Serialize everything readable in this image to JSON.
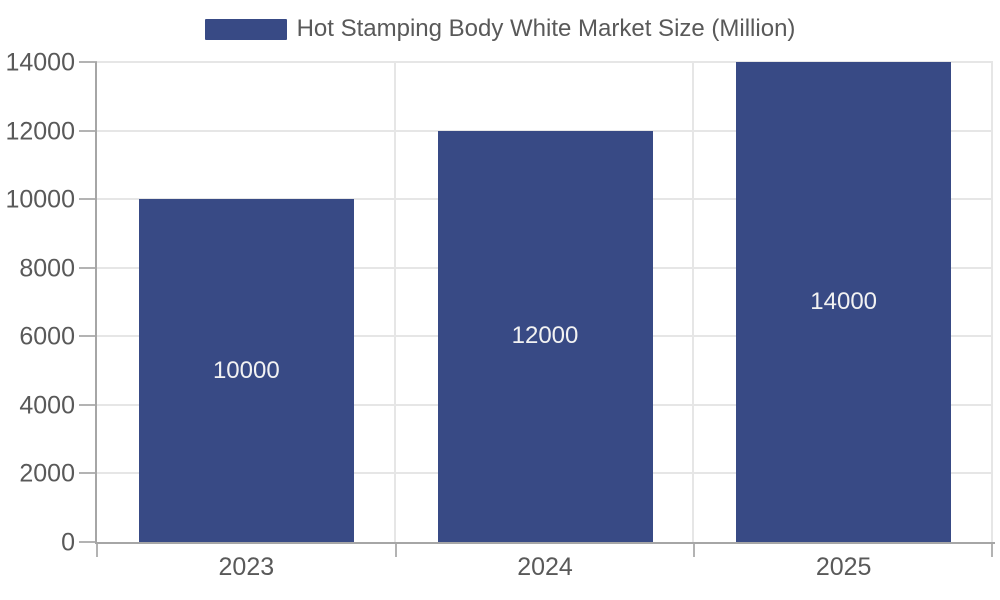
{
  "chart_data": {
    "type": "bar",
    "title": "Hot Stamping Body White Market Size (Million)",
    "categories": [
      "2023",
      "2024",
      "2025"
    ],
    "values": [
      10000,
      12000,
      14000
    ],
    "series": [
      {
        "name": "Hot Stamping Body White Market Size (Million)",
        "values": [
          10000,
          12000,
          14000
        ]
      }
    ],
    "data_labels": [
      "10000",
      "12000",
      "14000"
    ],
    "xlabel": "",
    "ylabel": "",
    "ylim": [
      0,
      14000
    ],
    "yticks": [
      0,
      2000,
      4000,
      6000,
      8000,
      10000,
      12000,
      14000
    ],
    "ytick_labels": [
      "0",
      "2000",
      "4000",
      "6000",
      "8000",
      "10000",
      "12000",
      "14000"
    ],
    "grid": true,
    "legend_position": "top-center",
    "colors": {
      "bar": "#384A85",
      "axis_text": "#595959",
      "grid_line": "#e6e6e6",
      "axis_line": "#a6a6a6",
      "tick_line": "#b3b3b3",
      "data_label": "#f2f2f2",
      "background": "#ffffff"
    }
  }
}
